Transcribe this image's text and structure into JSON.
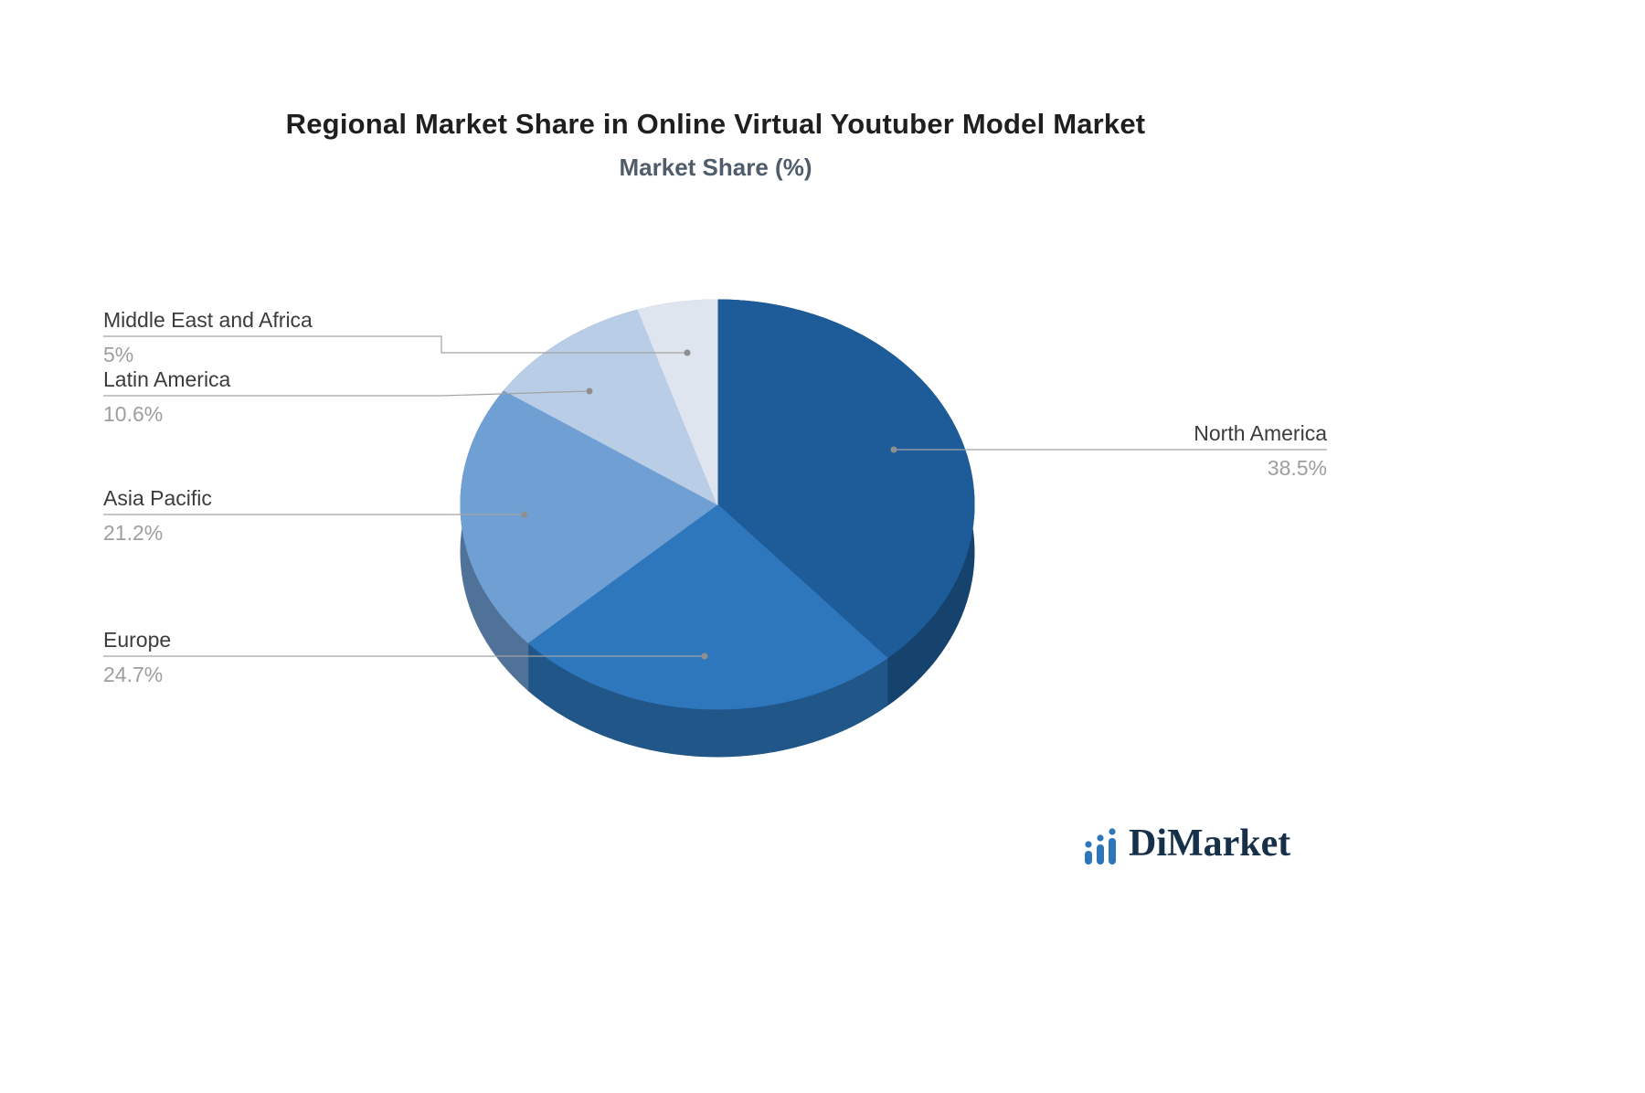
{
  "header": {
    "title": "Regional Market Share in Online Virtual Youtuber Model Market",
    "subtitle": "Market Share (%)"
  },
  "branding": {
    "logo_text": "DiMarket",
    "logo_color": "#2d76bb",
    "wordmark_color": "#16304a"
  },
  "chart_data": {
    "type": "pie",
    "title": "Regional Market Share in Online Virtual Youtuber Model Market",
    "subtitle": "Market Share (%)",
    "unit": "%",
    "labels": [
      "North America",
      "Europe",
      "Asia Pacific",
      "Latin America",
      "Middle East and Africa"
    ],
    "values": [
      38.5,
      24.7,
      21.2,
      10.6,
      5
    ],
    "display_values": [
      "38.5%",
      "24.7%",
      "21.2%",
      "10.6%",
      "5%"
    ],
    "colors": [
      "#1e5c99",
      "#2e77bd",
      "#6f9fd3",
      "#b9cde6",
      "#dfe5ef"
    ],
    "legend": "none",
    "style": "3d-pie",
    "start_angle_deg": 0,
    "direction": "clockwise",
    "label_name_color": "#3c3c3c",
    "label_value_color": "#9e9e9e",
    "leader_line_color": "#a3a3a3"
  }
}
